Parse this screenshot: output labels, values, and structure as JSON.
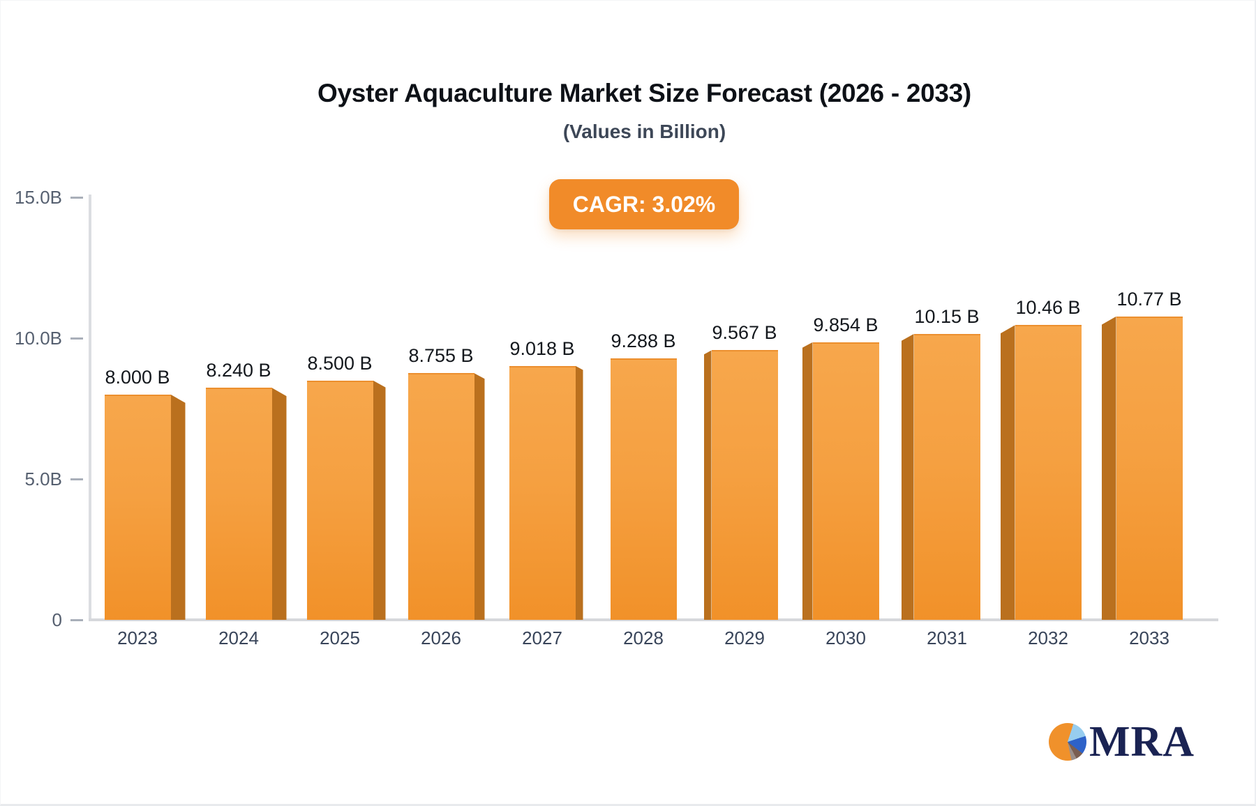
{
  "header": {
    "title": "Oyster Aquaculture Market Size Forecast (2026 - 2033)",
    "subtitle": "(Values in Billion)",
    "cagr_badge": "CAGR: 3.02%"
  },
  "chart_data": {
    "type": "bar",
    "title": "Oyster Aquaculture Market Size Forecast (2026 - 2033)",
    "subtitle": "(Values in Billion)",
    "annotation": "CAGR: 3.02%",
    "categories": [
      "2023",
      "2024",
      "2025",
      "2026",
      "2027",
      "2028",
      "2029",
      "2030",
      "2031",
      "2032",
      "2033"
    ],
    "values": [
      8.0,
      8.24,
      8.5,
      8.755,
      9.018,
      9.288,
      9.567,
      9.854,
      10.15,
      10.46,
      10.77
    ],
    "value_labels": [
      "8.000 B",
      "8.240 B",
      "8.500 B",
      "8.755 B",
      "9.018 B",
      "9.288 B",
      "9.567 B",
      "9.854 B",
      "10.15 B",
      "10.46 B",
      "10.77 B"
    ],
    "xlabel": "",
    "ylabel": "",
    "ylim": [
      0,
      15
    ],
    "y_ticks": [
      {
        "label": "15.0B",
        "value": 15
      },
      {
        "label": "10.0B",
        "value": 10
      },
      {
        "label": "5.0B",
        "value": 5
      },
      {
        "label": "0",
        "value": 0
      }
    ],
    "grid": false,
    "legend": false,
    "colors": {
      "bar_face_top": "#F7A74C",
      "bar_face_bottom": "#F19129",
      "bar_side": "#BA701E",
      "accent": "#F18B29",
      "axis": "#D6D8DC",
      "tick_text": "#566070",
      "category_text": "#39455A",
      "value_text": "#14181d"
    }
  },
  "logo": {
    "text": "MRA",
    "text_color": "#1A2353",
    "pie_colors": [
      "#F0912B",
      "#97CDEF",
      "#2E62C8",
      "#7A5E51"
    ]
  }
}
